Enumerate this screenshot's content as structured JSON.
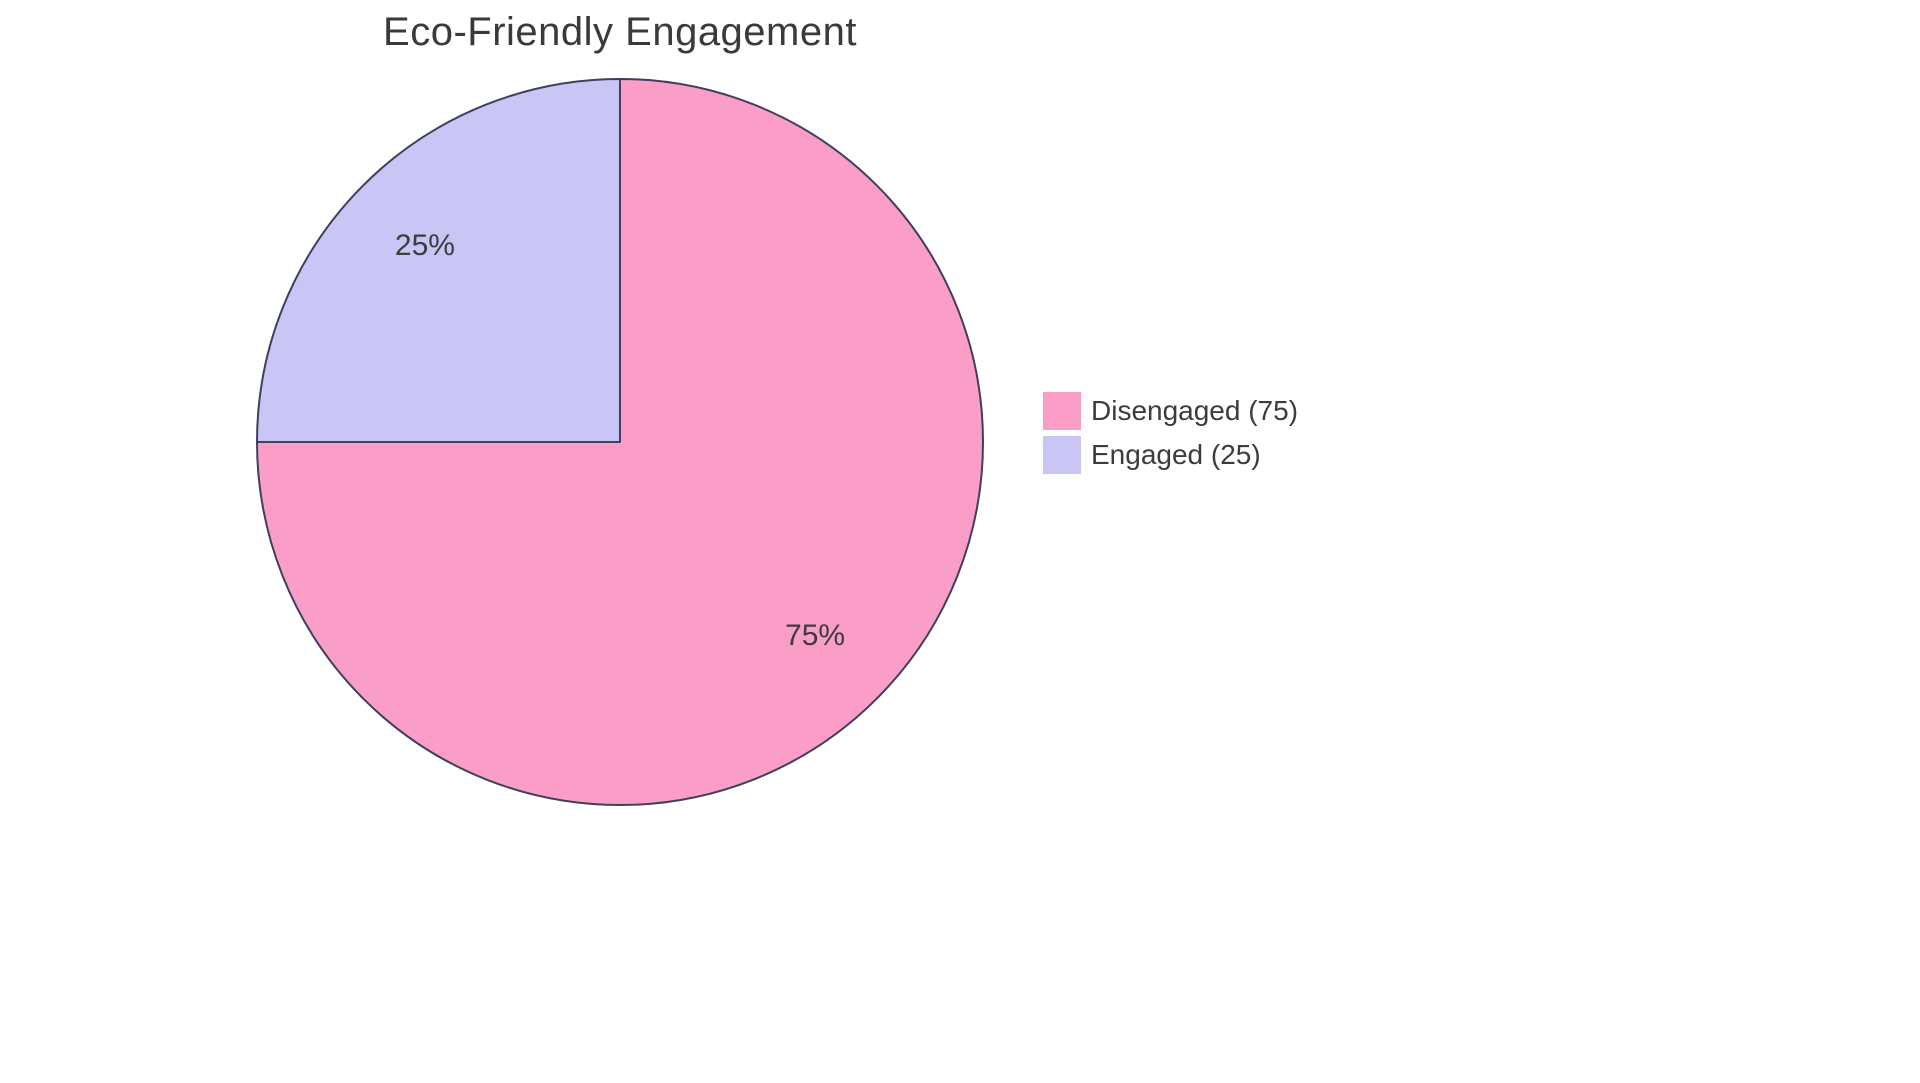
{
  "chart_data": {
    "type": "pie",
    "title": "Eco-Friendly Engagement",
    "start_angle_deg": -90,
    "direction": "clockwise",
    "stroke_color": "#3f3f5e",
    "stroke_width": 2,
    "label_color": "#3d3d3d",
    "legend_position": "right",
    "grid": false,
    "slices": [
      {
        "name": "Disengaged",
        "value": 75,
        "pct_label": "75%",
        "color": "#FA9EC7",
        "legend_label": "Disengaged (75)"
      },
      {
        "name": "Engaged",
        "value": 25,
        "pct_label": "25%",
        "color": "#C9C5F4",
        "legend_label": "Engaged (25)"
      }
    ]
  }
}
